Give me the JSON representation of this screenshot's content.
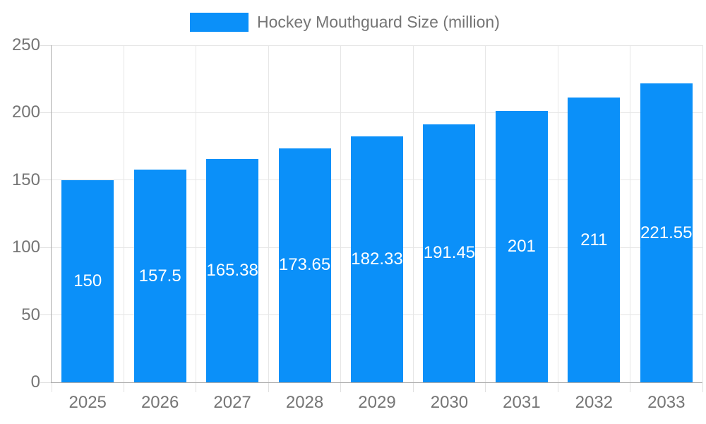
{
  "legend": {
    "label": "Hockey Mouthguard Size (million)"
  },
  "chart_data": {
    "type": "bar",
    "title": "Hockey Mouthguard Size (million)",
    "categories": [
      "2025",
      "2026",
      "2027",
      "2028",
      "2029",
      "2030",
      "2031",
      "2032",
      "2033"
    ],
    "values": [
      150,
      157.5,
      165.38,
      173.65,
      182.33,
      191.45,
      201,
      211,
      221.55
    ],
    "value_labels": [
      "150",
      "157.5",
      "165.38",
      "173.65",
      "182.33",
      "191.45",
      "201",
      "211",
      "221.55"
    ],
    "series": [
      {
        "name": "Hockey Mouthguard Size (million)",
        "values": [
          150,
          157.5,
          165.38,
          173.65,
          182.33,
          191.45,
          201,
          211,
          221.55
        ]
      }
    ],
    "xlabel": "",
    "ylabel": "",
    "ylim": [
      0,
      250
    ],
    "yticks": [
      0,
      50,
      100,
      150,
      200,
      250
    ],
    "grid": true,
    "legend_position": "top-center",
    "bar_label_position": "inside-center",
    "colors": {
      "bar": "#0b90f9",
      "bar_label_text": "#ffffff",
      "axis_text": "#757575",
      "axis_line": "#ababab",
      "gridline": "#e6e6e6",
      "tick": "#e0e0e0",
      "background": "#ffffff"
    }
  }
}
